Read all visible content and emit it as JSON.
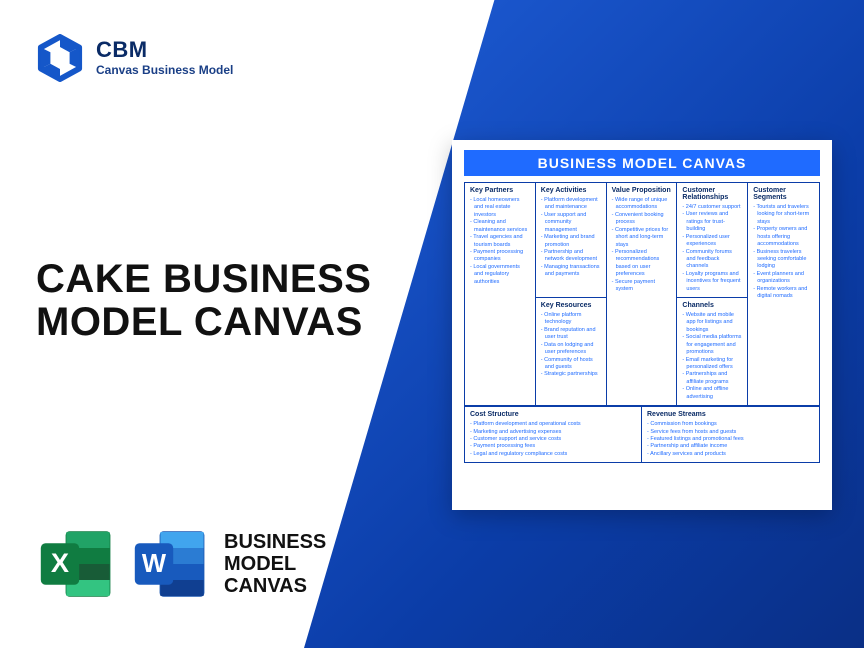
{
  "brand": {
    "abbr": "CBM",
    "name": "Canvas Business Model"
  },
  "headline": {
    "line1": "CAKE BUSINESS",
    "line2": "MODEL CANVAS"
  },
  "apps_label": {
    "l1": "BUSINESS",
    "l2": "MODEL",
    "l3": "CANVAS"
  },
  "canvas": {
    "title": "BUSINESS MODEL CANVAS",
    "colors": {
      "header_bg": "#1f6bff",
      "border": "#0b3da8",
      "heading": "#0a2b66",
      "item": "#1f6bff"
    },
    "blocks": {
      "key_partners": {
        "title": "Key Partners",
        "items": [
          "Local homeowners and real estate investors",
          "Cleaning and maintenance services",
          "Travel agencies and tourism boards",
          "Payment processing companies",
          "Local governments and regulatory authorities"
        ]
      },
      "key_activities": {
        "title": "Key Activities",
        "items": [
          "Platform development and maintenance",
          "User support and community management",
          "Marketing and brand promotion",
          "Partnership and network development",
          "Managing transactions and payments"
        ]
      },
      "key_resources": {
        "title": "Key Resources",
        "items": [
          "Online platform technology",
          "Brand reputation and user trust",
          "Data on lodging and user preferences",
          "Community of hosts and guests",
          "Strategic partnerships"
        ]
      },
      "value_proposition": {
        "title": "Value Proposition",
        "items": [
          "Wide range of unique accommodations",
          "Convenient booking process",
          "Competitive prices for short and long-term stays",
          "Personalized recommendations based on user preferences",
          "Secure payment system"
        ]
      },
      "customer_relationships": {
        "title": "Customer Relationships",
        "items": [
          "24/7 customer support",
          "User reviews and ratings for trust-building",
          "Personalized user experiences",
          "Community forums and feedback channels",
          "Loyalty programs and incentives for frequent users"
        ]
      },
      "channels": {
        "title": "Channels",
        "items": [
          "Website and mobile app for listings and bookings",
          "Social media platforms for engagement and promotions",
          "Email marketing for personalized offers",
          "Partnerships and affiliate programs",
          "Online and offline advertising"
        ]
      },
      "customer_segments": {
        "title": "Customer Segments",
        "items": [
          "Tourists and travelers looking for short-term stays",
          "Property owners and hosts offering accommodations",
          "Business travelers seeking comfortable lodging",
          "Event planners and organizations",
          "Remote workers and digital nomads"
        ]
      },
      "cost_structure": {
        "title": "Cost Structure",
        "items": [
          "Platform development and operational costs",
          "Marketing and advertising expenses",
          "Customer support and service costs",
          "Payment processing fees",
          "Legal and regulatory compliance costs"
        ]
      },
      "revenue_streams": {
        "title": "Revenue Streams",
        "items": [
          "Commission from bookings",
          "Service fees from hosts and guests",
          "Featured listings and promotional fees",
          "Partnership and affiliate income",
          "Ancillary services and products"
        ]
      }
    }
  }
}
